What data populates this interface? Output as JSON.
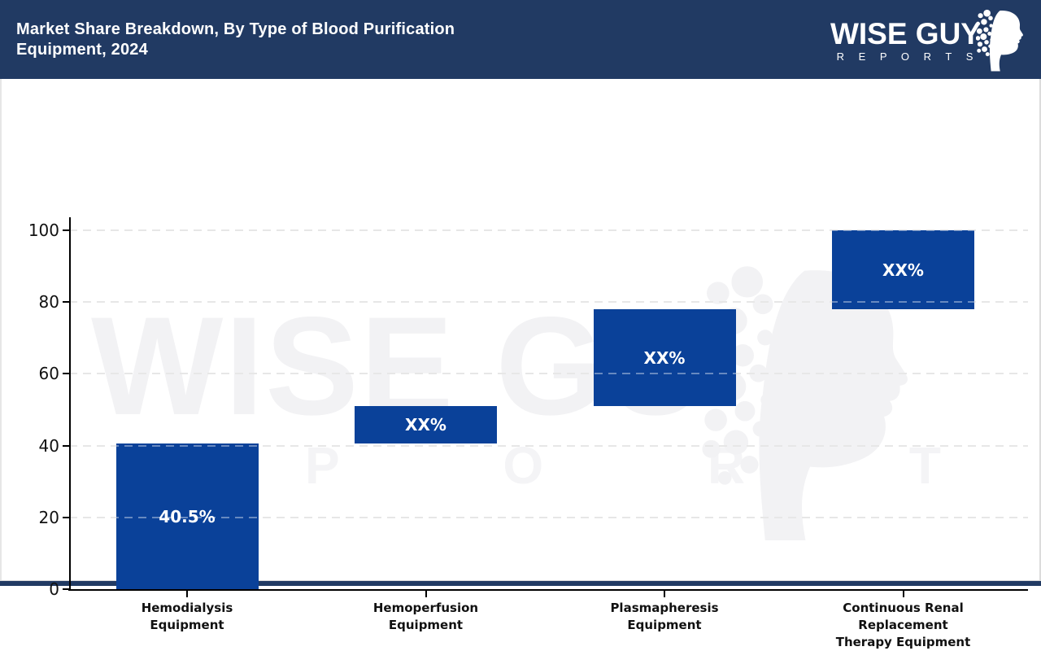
{
  "header": {
    "title_line1": "Market Share Breakdown, By Type of Blood Purification",
    "title_line2": "Equipment, 2024",
    "logo": {
      "name": "WISE GUY",
      "sub": "R E P O R T S"
    }
  },
  "watermark": {
    "line1": "WISE GU",
    "line2": "P O R T S"
  },
  "colors": {
    "header_bg": "#213A63",
    "footer_bg": "#213A63",
    "bar_fill": "#0A4199",
    "bar_label": "#FFFFFF",
    "gridline": "#D9D9D9",
    "axis": "#000000",
    "watermark": "#F2F2F4"
  },
  "chart_data": {
    "type": "bar",
    "subtype": "waterfall",
    "title": "Market Share Breakdown, By Type of Blood Purification Equipment, 2024",
    "categories": [
      "Hemodialysis\nEquipment",
      "Hemoperfusion\nEquipment",
      "Plasmapheresis\nEquipment",
      "Continuous Renal\nReplacement\nTherapy Equipment"
    ],
    "segments": [
      {
        "category": "Hemodialysis Equipment",
        "start": 0,
        "end": 40.5,
        "label": "40.5%"
      },
      {
        "category": "Hemoperfusion Equipment",
        "start": 40.5,
        "end": 51,
        "label": "XX%"
      },
      {
        "category": "Plasmapheresis Equipment",
        "start": 51,
        "end": 78,
        "label": "XX%"
      },
      {
        "category": "Continuous Renal Replacement Therapy Equipment",
        "start": 78,
        "end": 100,
        "label": "XX%"
      }
    ],
    "xlabel": "",
    "ylabel": "",
    "ylim": [
      0,
      100
    ],
    "yticks": [
      0,
      20,
      40,
      60,
      80,
      100
    ],
    "grid": "horizontal-dashed",
    "legend": "none"
  }
}
